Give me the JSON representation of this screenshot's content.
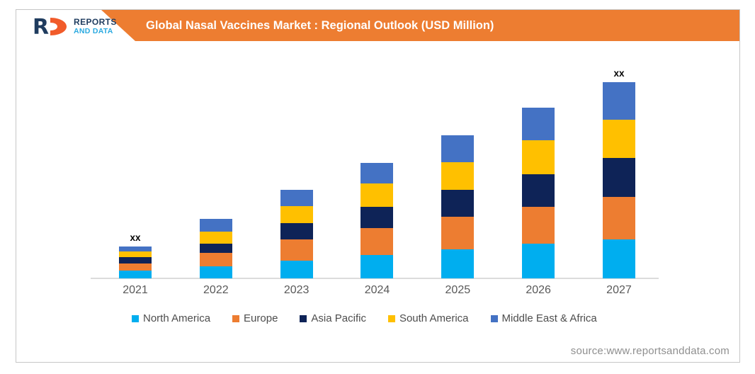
{
  "header": {
    "title": "Global Nasal Vaccines Market : Regional Outlook (USD Million)",
    "banner_color": "#ED7D31"
  },
  "logo": {
    "mark": "rd-monogram",
    "text_line1": "REPORTS",
    "text_line2": "AND DATA",
    "navy": "#1F3C5F",
    "light_blue": "#29A9E0",
    "orange": "#F15B2A"
  },
  "chart_data": {
    "type": "bar",
    "subtype": "stacked-column",
    "title": "Global Nasal Vaccines Market : Regional Outlook (USD Million)",
    "categories": [
      "2021",
      "2022",
      "2023",
      "2024",
      "2025",
      "2026",
      "2027"
    ],
    "series": [
      {
        "name": "North America",
        "color": "#00AEEF",
        "values": [
          11,
          17.5,
          25,
          33.5,
          41.5,
          49.5,
          55.5
        ]
      },
      {
        "name": "Europe",
        "color": "#ED7D31",
        "values": [
          10,
          18.5,
          30,
          37.5,
          46,
          51.5,
          60
        ]
      },
      {
        "name": "Asia Pacific",
        "color": "#0E2357",
        "values": [
          9,
          13.5,
          23.5,
          30.5,
          38,
          46.5,
          55
        ]
      },
      {
        "name": "South America",
        "color": "#FFC000",
        "values": [
          8.5,
          16.5,
          24,
          33,
          38.5,
          47.5,
          53.5
        ]
      },
      {
        "name": "Middle East & Africa",
        "color": "#4472C4",
        "values": [
          7,
          18,
          22.5,
          29,
          38.5,
          46,
          53.5
        ]
      }
    ],
    "values_unit": "relative-height-estimate",
    "value_labels": {
      "2021": "xx",
      "2027": "xx"
    },
    "legend_position": "bottom",
    "value_axis_visible": false,
    "grid": false
  },
  "footer": {
    "source_label": "source:www.reportsanddata.com"
  },
  "theme": {
    "frame_border": "#c6c6c6",
    "axis_line": "#dcdcdc",
    "category_label_color": "#595959",
    "legend_text_color": "#4d4d4d",
    "source_text_color": "#8f8f8f"
  }
}
